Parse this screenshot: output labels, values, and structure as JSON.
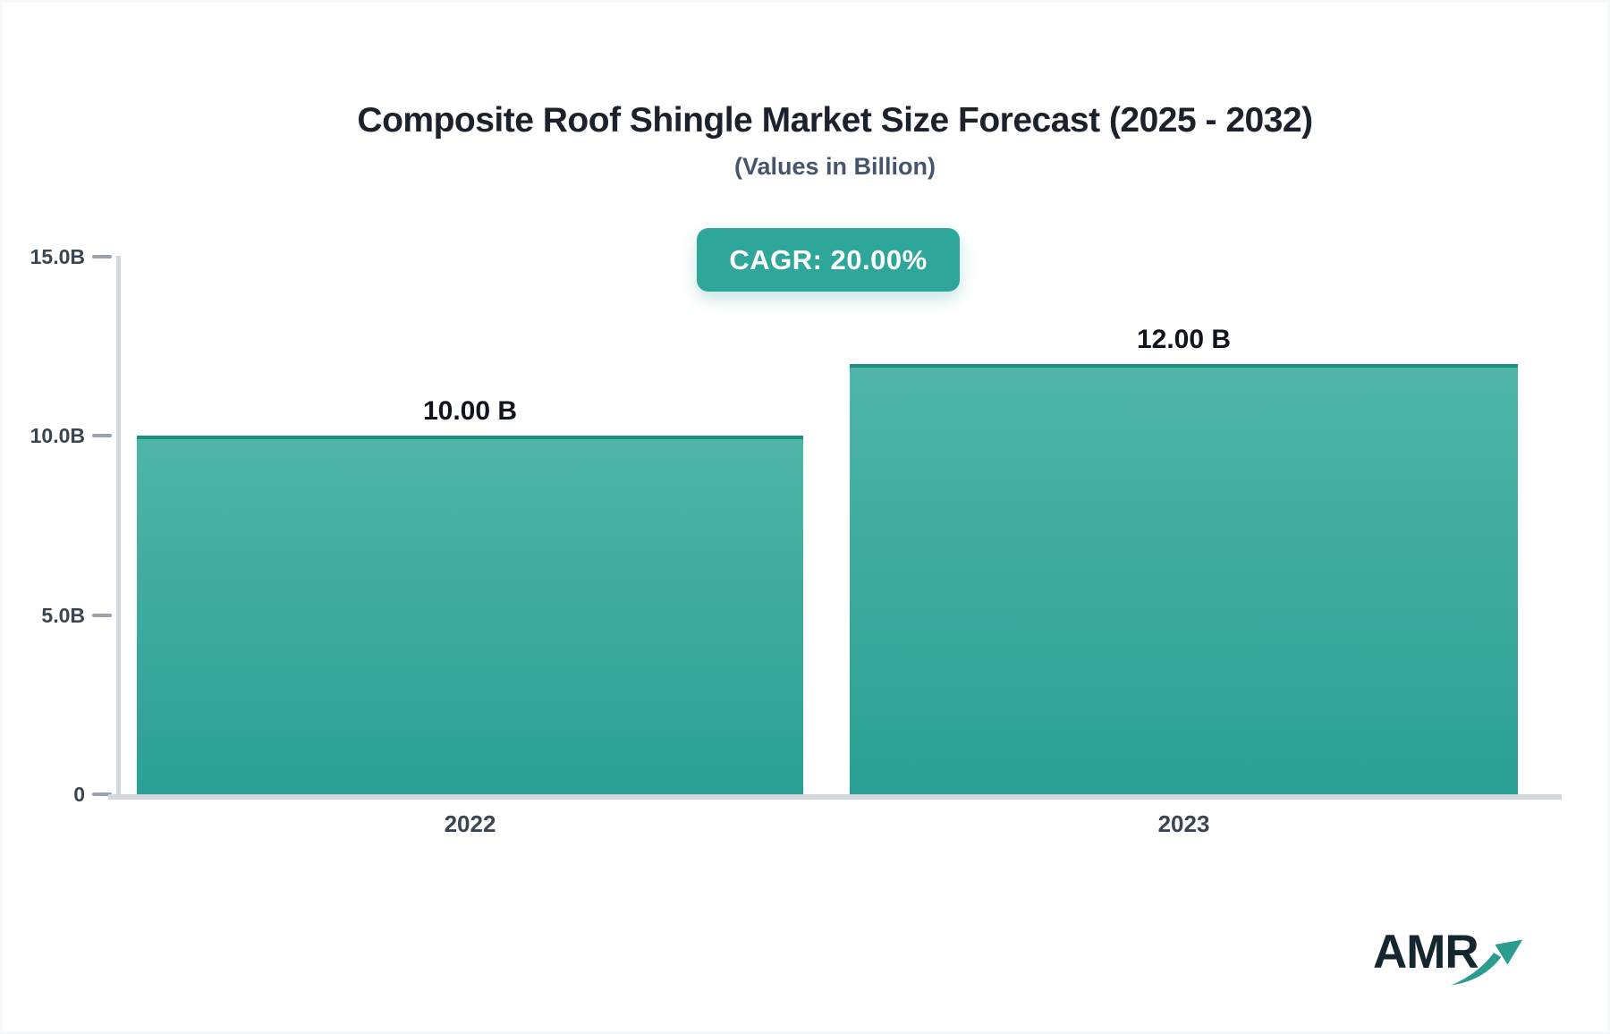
{
  "title": "Composite Roof Shingle Market Size Forecast (2025 - 2032)",
  "subtitle": "(Values in Billion)",
  "cagr_badge": "CAGR: 20.00%",
  "colors": {
    "badge_teal": "#2ea79a",
    "bar_gradient_top": "#4fb5a8",
    "bar_gradient_bottom": "#2ba094",
    "bar_top_border": "#1d8e82",
    "axis_line": "#d3d7de",
    "tick_dash": "#9aa3ad",
    "logo_text": "#16262e",
    "logo_arrow": "#2d9c90"
  },
  "logo": {
    "text": "AMR",
    "icon": "trend-up-arrow-icon"
  },
  "chart_data": {
    "type": "bar",
    "title": "Composite Roof Shingle Market Size Forecast (2025 - 2032)",
    "subtitle": "(Values in Billion)",
    "categories": [
      "2022",
      "2023"
    ],
    "values": [
      10.0,
      12.0
    ],
    "bar_labels": [
      "10.00 B",
      "12.00 B"
    ],
    "yticks": [
      "15.0B",
      "10.0B",
      "5.0B",
      "0"
    ],
    "ytick_values": [
      15,
      10,
      5,
      0
    ],
    "ylim": [
      0,
      15
    ],
    "xlabel": "",
    "ylabel": "",
    "unit": "Billion",
    "grid": false,
    "legend": false,
    "annotation": "CAGR: 20.00%"
  }
}
